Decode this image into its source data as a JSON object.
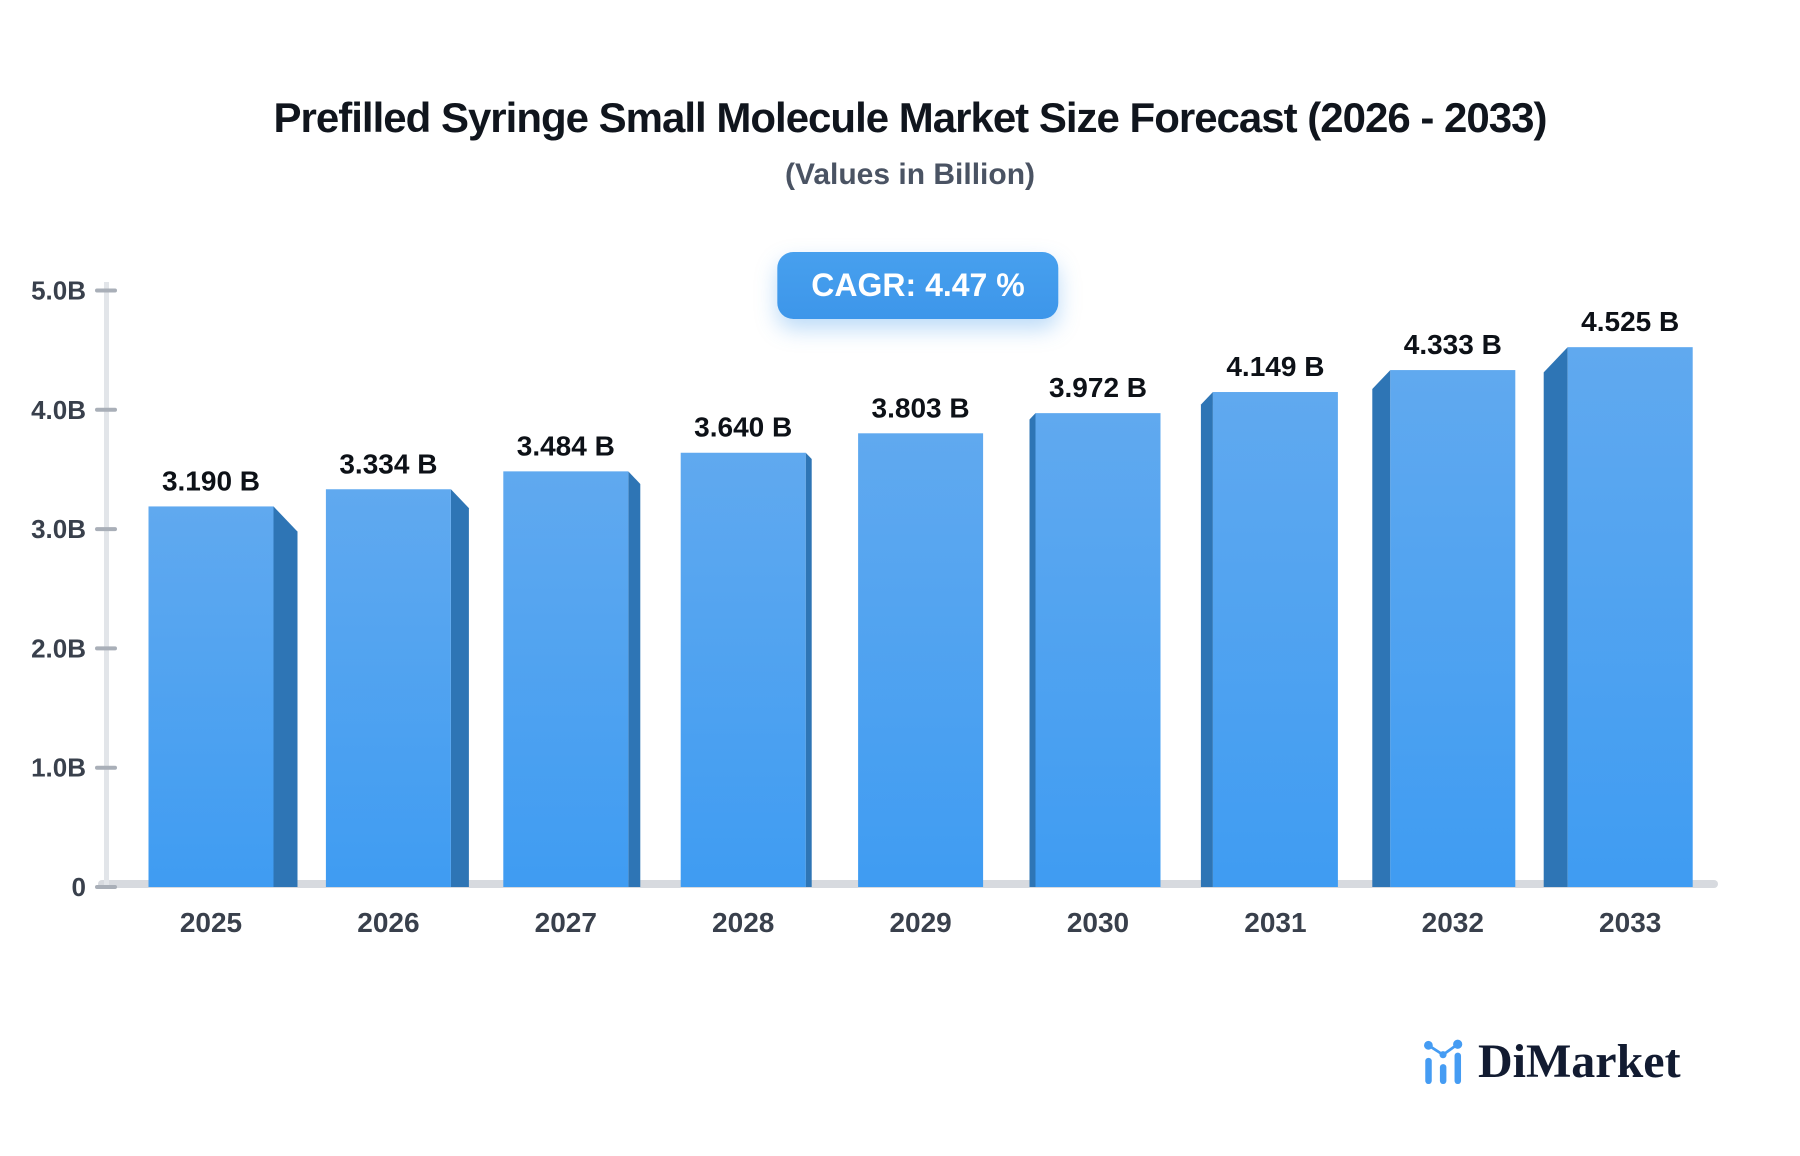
{
  "header": {
    "title": "Prefilled Syringe Small Molecule Market Size Forecast (2026 - 2033)",
    "subtitle": "(Values in Billion)",
    "cagr_badge": "CAGR: 4.47 %"
  },
  "chart_data": {
    "type": "bar",
    "title": "Prefilled Syringe Small Molecule Market Size Forecast (2026 - 2033)",
    "subtitle": "(Values in Billion)",
    "cagr_percent": 4.47,
    "categories": [
      "2025",
      "2026",
      "2027",
      "2028",
      "2029",
      "2030",
      "2031",
      "2032",
      "2033"
    ],
    "values": [
      3.19,
      3.334,
      3.484,
      3.64,
      3.803,
      3.972,
      4.149,
      4.333,
      4.525
    ],
    "value_labels": [
      "3.190 B",
      "3.334 B",
      "3.484 B",
      "3.640 B",
      "3.803 B",
      "3.972 B",
      "4.149 B",
      "4.333 B",
      "4.525 B"
    ],
    "xlabel": "",
    "ylabel": "",
    "ylim": [
      0,
      5
    ],
    "y_ticks": [
      {
        "value": 0,
        "label": "0"
      },
      {
        "value": 1,
        "label": "1.0B"
      },
      {
        "value": 2,
        "label": "2.0B"
      },
      {
        "value": 3,
        "label": "3.0B"
      },
      {
        "value": 4,
        "label": "4.0B"
      },
      {
        "value": 5,
        "label": "5.0B"
      }
    ],
    "grid": false,
    "legend": null,
    "colors": {
      "bar_face_top": "#60a9ef",
      "bar_face_bottom": "#3f9cf2",
      "bar_side": "#2e75b5",
      "axis_line": "#e2e5e9",
      "baseline": "#d7dadf",
      "tick_dash": "#a9afb8",
      "axis_text": "#39404c",
      "value_text": "#0d1117"
    }
  },
  "branding": {
    "logo_text": "DiMarket",
    "logo_icon": "bar-chart-sparkline-icon",
    "logo_icon_color": "#459cf3",
    "logo_text_color": "#121b31"
  }
}
